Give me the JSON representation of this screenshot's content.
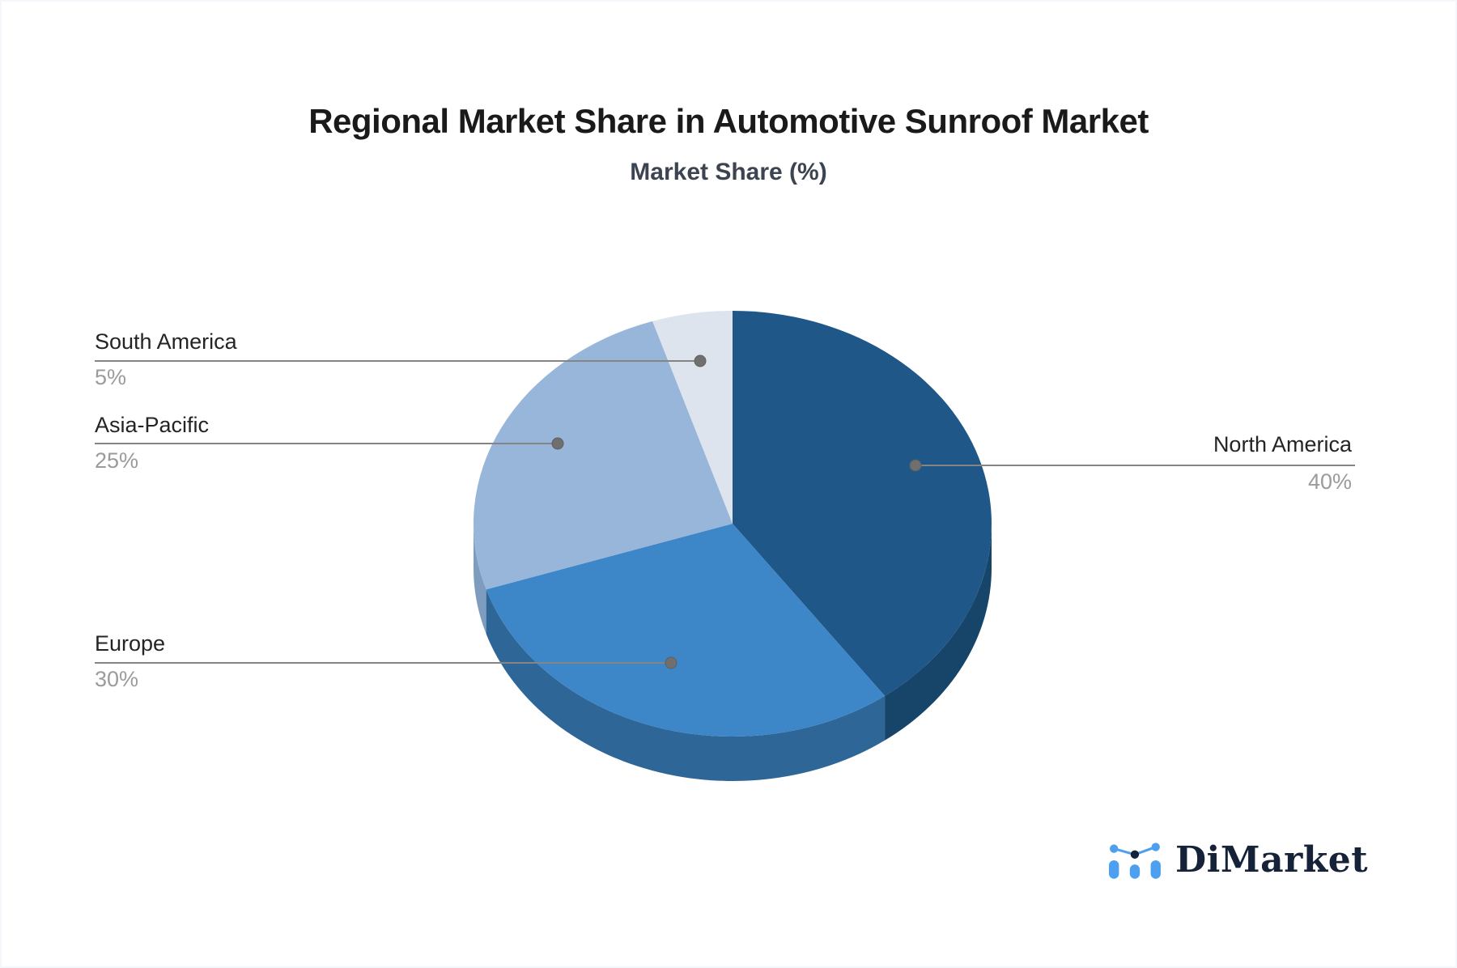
{
  "title": "Regional Market Share in Automotive Sunroof Market",
  "subtitle": "Market Share (%)",
  "chart_data": {
    "type": "pie",
    "title": "Regional Market Share in Automotive Sunroof Market",
    "subtitle": "Market Share (%)",
    "unit": "%",
    "effect": "3d-extruded",
    "start_angle_deg": 0,
    "clockwise": true,
    "legend": "none",
    "categories": [
      "North America",
      "Europe",
      "Asia-Pacific",
      "South America"
    ],
    "values": [
      40,
      30,
      25,
      5
    ],
    "slices": [
      {
        "label": "North America",
        "value": 40,
        "value_label": "40%",
        "color": "#1e5788",
        "side_color": "#164569",
        "label_side": "right"
      },
      {
        "label": "Europe",
        "value": 30,
        "value_label": "30%",
        "color": "#3d86c8",
        "side_color": "#2d6697",
        "label_side": "left"
      },
      {
        "label": "Asia-Pacific",
        "value": 25,
        "value_label": "25%",
        "color": "#97b6d9",
        "side_color": "#7e9cbe",
        "label_side": "left"
      },
      {
        "label": "South America",
        "value": 5,
        "value_label": "5%",
        "color": "#dde4ee",
        "side_color": "#c3cedd",
        "label_side": "left"
      }
    ]
  },
  "colors": {
    "background": "#ffffff",
    "page_border": "#f3f6fa",
    "title_text": "#1a1a1a",
    "subtitle_text": "#3b4450",
    "label_text": "#242424",
    "value_text": "#9b9b9b",
    "leader_line": "#858585",
    "leader_dot": "#6f6f6f"
  },
  "logo": {
    "text": "DiMarket",
    "icon": "bar-line-chart-icon",
    "text_color": "#152238",
    "bar_color": "#4d9ff0",
    "mid_dot_color": "#152238"
  }
}
